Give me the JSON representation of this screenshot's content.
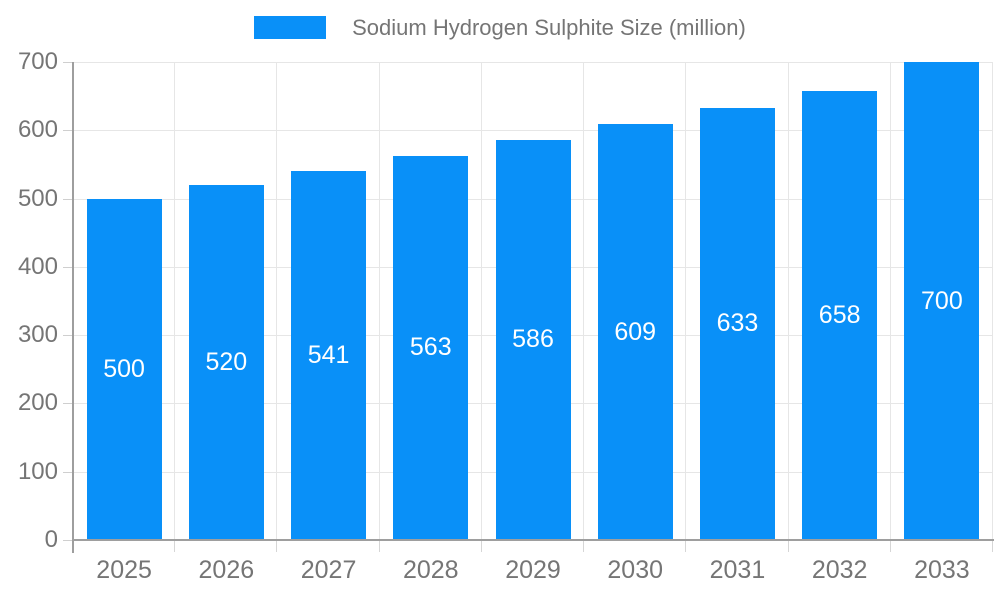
{
  "legend": {
    "label": "Sodium Hydrogen Sulphite Size (million)",
    "swatch_color": "#0990f8"
  },
  "chart_data": {
    "type": "bar",
    "title": "",
    "xlabel": "",
    "ylabel": "",
    "categories": [
      "2025",
      "2026",
      "2027",
      "2028",
      "2029",
      "2030",
      "2031",
      "2032",
      "2033"
    ],
    "series": [
      {
        "name": "Sodium Hydrogen Sulphite Size (million)",
        "values": [
          500,
          520,
          541,
          563,
          586,
          609,
          633,
          658,
          700
        ]
      }
    ],
    "value_labels_shown": true,
    "ylim": [
      0,
      700
    ],
    "y_ticks": [
      0,
      100,
      200,
      300,
      400,
      500,
      600,
      700
    ],
    "grid": true,
    "legend_position": "top",
    "colors": {
      "bar": "#0990f8",
      "value_label": "#ffffff",
      "axis_line": "#9e9e9e",
      "gridline": "#e6e6e6",
      "tick": "#cfcfcf",
      "text": "#757575"
    }
  }
}
